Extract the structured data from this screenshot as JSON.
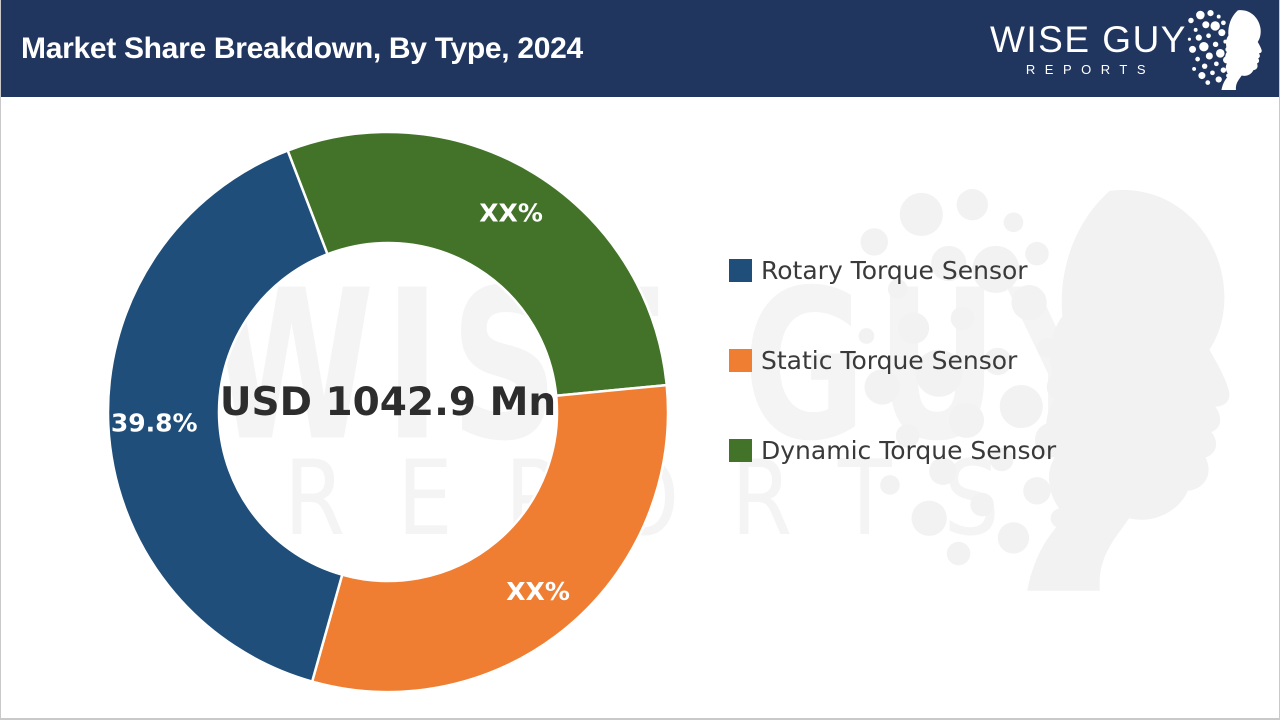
{
  "header": {
    "title": "Market Share Breakdown, By Type, 2024",
    "bg_color": "#21365f",
    "logo": {
      "line1": "WISE GUY",
      "line2": "REPORTS"
    }
  },
  "watermark": {
    "line1": "WISE GUY",
    "line2": "REPORTS"
  },
  "chart_data": {
    "type": "donut",
    "title": "Market Share Breakdown, By Type, 2024",
    "center_label": "USD 1042.9 Mn",
    "start_angle_clockwise_from_top_deg": -21,
    "segments": [
      {
        "name": "Dynamic Torque Sensor",
        "display_label": "XX%",
        "value_pct": 29.3,
        "color": "#437329"
      },
      {
        "name": "Static Torque Sensor",
        "display_label": "XX%",
        "value_pct": 30.9,
        "color": "#ef7e32"
      },
      {
        "name": "Rotary Torque Sensor",
        "display_label": "39.8%",
        "value_pct": 39.8,
        "color": "#1f4e7a"
      }
    ],
    "legend": {
      "position": "right",
      "items": [
        {
          "label": "Rotary Torque Sensor",
          "color": "#1f4e7a"
        },
        {
          "label": "Static Torque Sensor",
          "color": "#ef7e32"
        },
        {
          "label": "Dynamic Torque Sensor",
          "color": "#437329"
        }
      ]
    },
    "label_text_color": "#ffffff",
    "segment_gap_color": "#ffffff"
  }
}
